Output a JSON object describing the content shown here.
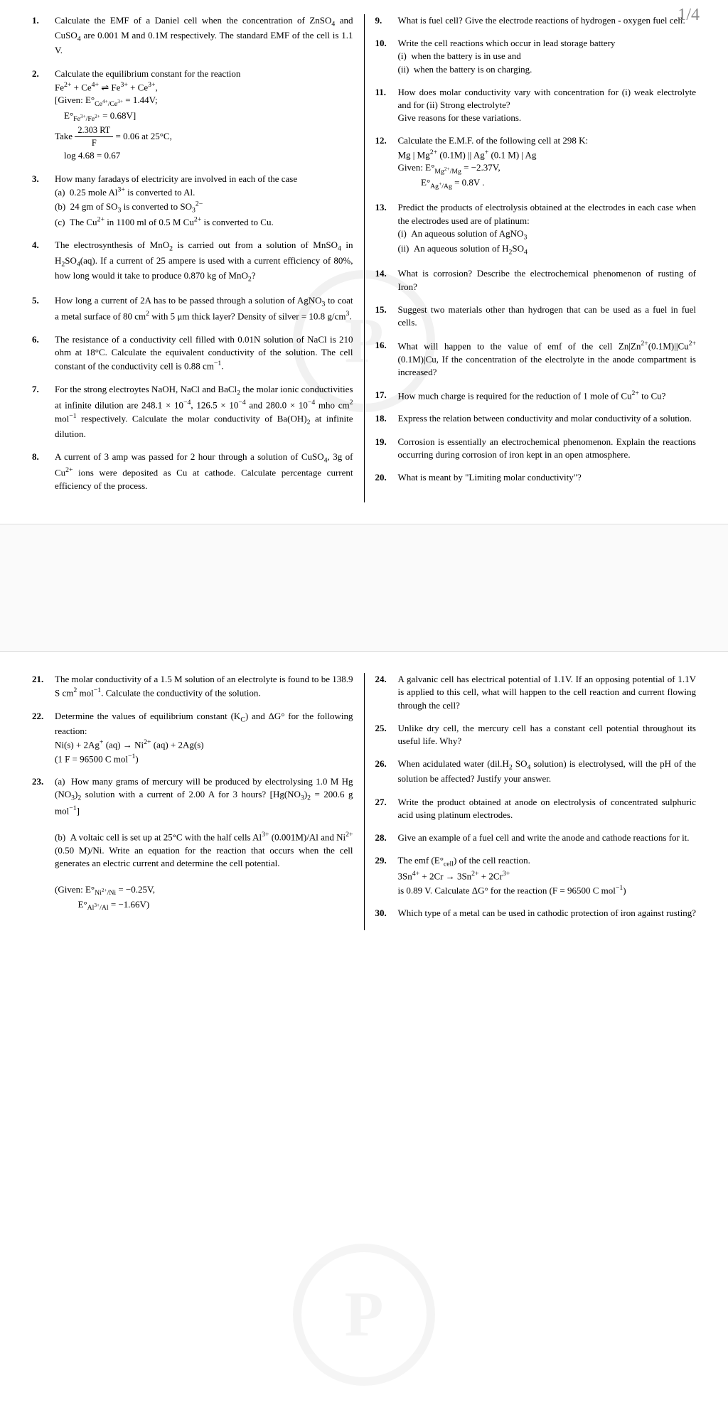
{
  "page_number": "1/4",
  "watermark_text": "P",
  "page1": {
    "left": [
      {
        "n": "1.",
        "html": "Calculate the EMF of a Daniel cell when the concentration of ZnSO<sub>4</sub> and CuSO<sub>4</sub> are 0.001 M and 0.1M respectively. The standard EMF of the cell is 1.1 V."
      },
      {
        "n": "2.",
        "html": "Calculate the equilibrium constant for the reaction<br>Fe<sup>2+</sup> + Ce<sup>4+</sup> ⇌ Fe<sup>3+</sup> + Ce<sup>3+</sup>,<br>[Given: E°<sub>Ce<sup>4+</sup>/Ce<sup>3+</sup></sub> = 1.44V;<br>&nbsp;&nbsp;&nbsp;&nbsp;E°<sub>Fe<sup>3+</sup>/Fe<sup>2+</sup></sub> = 0.68V]<br>Take <span class='frac'><span class='num'>2.303 RT</span><span class='den'>F</span></span> = 0.06 at 25°C,<br>&nbsp;&nbsp;&nbsp;&nbsp;log 4.68 = 0.67"
      },
      {
        "n": "3.",
        "html": "How many faradays of electricity are involved in each of the case<br><span class='sub-item'>(a)&nbsp;&nbsp;0.25 mole Al<sup>3+</sup> is converted to Al.</span><br><span class='sub-item'>(b)&nbsp;&nbsp;24 gm of SO<sub>3</sub> is converted to SO<sub>3</sub><sup>2−</sup></span><br><span class='sub-item'>(c)&nbsp;&nbsp;The Cu<sup>2+</sup> in 1100 ml of 0.5 M Cu<sup>2+</sup> is converted to Cu.</span>"
      },
      {
        "n": "4.",
        "html": "The electrosynthesis of MnO<sub>2</sub> is carried out from a solution of MnSO<sub>4</sub> in H<sub>2</sub>SO<sub>4</sub>(aq). If a current of 25 ampere is used with a current efficiency of 80%, how long would it take to produce 0.870 kg of MnO<sub>2</sub>?"
      },
      {
        "n": "5.",
        "html": "How long a current of 2A has to be passed through a solution of AgNO<sub>3</sub> to coat a metal surface of 80 cm<sup>2</sup> with 5 μm thick layer? Density of silver = 10.8 g/cm<sup>3</sup>."
      },
      {
        "n": "6.",
        "html": "The resistance of a conductivity cell filled with 0.01N solution of NaCl is 210 ohm at 18°C. Calculate the equivalent conductivity of the solution. The cell constant of the conductivity cell is 0.88 cm<sup>−1</sup>."
      },
      {
        "n": "7.",
        "html": "For the strong electroytes NaOH, NaCl and BaCl<sub>2</sub> the molar ionic conductivities at infinite dilution are 248.1 × 10<sup>−4</sup>, 126.5 × 10<sup>−4</sup> and 280.0 × 10<sup>−4</sup> mho cm<sup>2</sup> mol<sup>−1</sup> respectively. Calculate the molar conductivity of Ba(OH)<sub>2</sub> at infinite dilution."
      },
      {
        "n": "8.",
        "html": "A current of 3 amp was passed for 2 hour through a solution of CuSO<sub>4</sub>, 3g of Cu<sup>2+</sup> ions were deposited as Cu at cathode. Calculate percentage current efficiency of the process."
      }
    ],
    "right": [
      {
        "n": "9.",
        "html": "What is fuel cell? Give the electrode reactions of hydrogen - oxygen fuel cell."
      },
      {
        "n": "10.",
        "html": "Write the cell reactions which occur in lead storage battery<br>(i)&nbsp;&nbsp;when the battery is in use and<br>(ii)&nbsp;&nbsp;when the battery is on charging."
      },
      {
        "n": "11.",
        "html": "How does molar conductivity vary with concentration for (i) weak electrolyte and for (ii) Strong electrolyte?<br>Give reasons for these variations."
      },
      {
        "n": "12.",
        "html": "Calculate the E.M.F. of the following cell at 298 K:<br>Mg | Mg<sup>2+</sup> (0.1M) || Ag<sup>+</sup> (0.1 M) | Ag<br>Given: E°<sub>Mg<sup>2+</sup>/Mg</sub> = −2.37V,<br>&nbsp;&nbsp;&nbsp;&nbsp;&nbsp;&nbsp;&nbsp;&nbsp;&nbsp;&nbsp;E°<sub>Ag<sup>+</sup>/Ag</sub> = 0.8V ."
      },
      {
        "n": "13.",
        "html": "Predict the products of electrolysis obtained at the electrodes in each case when the electrodes used are of platinum:<br>(i)&nbsp;&nbsp;An aqueous solution of AgNO<sub>3</sub><br>(ii)&nbsp;&nbsp;An aqueous solution of H<sub>2</sub>SO<sub>4</sub>"
      },
      {
        "n": "14.",
        "html": "What is corrosion? Describe the electrochemical phenomenon of rusting of Iron?"
      },
      {
        "n": "15.",
        "html": "Suggest two materials other than hydrogen that can be used as a fuel in fuel cells."
      },
      {
        "n": "16.",
        "html": "What will happen to the value of emf of the cell Zn|Zn<sup>2+</sup>(0.1M)||Cu<sup>2+</sup> (0.1M)|Cu, If the concentration of the electrolyte in the anode compartment is increased?"
      },
      {
        "n": "17.",
        "html": "How much charge is required for the reduction of 1 mole of Cu<sup>2+</sup> to Cu?"
      },
      {
        "n": "18.",
        "html": "Express the relation between conductivity and molar conductivity of a solution."
      },
      {
        "n": "19.",
        "html": "Corrosion is essentially an electrochemical phenomenon. Explain the reactions occurring during corrosion of iron kept in an open atmosphere."
      },
      {
        "n": "20.",
        "html": "What is meant by \"Limiting molar conductivity\"?"
      }
    ]
  },
  "page2": {
    "left": [
      {
        "n": "21.",
        "html": "The molar conductivity of a 1.5 M solution of an electrolyte is found to be 138.9 S cm<sup>2</sup> mol<sup>−1</sup>. Calculate the conductivity of the solution."
      },
      {
        "n": "22.",
        "html": "Determine the values of equilibrium constant (K<sub>C</sub>) and ΔG° for the following reaction:<br>Ni(s) + 2Ag<sup>+</sup> (aq) → Ni<sup>2+</sup> (aq) + 2Ag(s)<br>(1 F = 96500 C mol<sup>−1</sup>)"
      },
      {
        "n": "23.",
        "html": "(a)&nbsp;&nbsp;How many grams of mercury will be produced by electrolysing 1.0 M Hg (NO<sub>3</sub>)<sub>2</sub> solution with a current of 2.00 A for 3 hours? [Hg(NO<sub>3</sub>)<sub>2</sub> = 200.6 g mol<sup>−1</sup>]<br><br>(b)&nbsp;&nbsp;A voltaic cell is set up at 25°C with the half cells Al<sup>3+</sup> (0.001M)/Al and Ni<sup>2+</sup> (0.50 M)/Ni. Write an equation for the reaction that occurs when the cell generates an electric current and determine the cell potential.<br><br>(Given: E°<sub>Ni<sup>2+</sup>/Ni</sub> = −0.25V,<br>&nbsp;&nbsp;&nbsp;&nbsp;&nbsp;&nbsp;&nbsp;&nbsp;&nbsp;&nbsp;E°<sub>Al<sup>3+</sup>/Al</sub> = −1.66V)"
      }
    ],
    "right": [
      {
        "n": "24.",
        "html": "A galvanic cell has electrical potential of 1.1V. If an opposing potential of 1.1V is applied to this cell, what will happen to the cell reaction and current flowing through the cell?"
      },
      {
        "n": "25.",
        "html": "Unlike dry cell, the mercury cell has a constant cell potential throughout its useful life. Why?"
      },
      {
        "n": "26.",
        "html": "When acidulated water (dil.H<sub>2</sub> SO<sub>4</sub> solution) is electrolysed, will the pH of the solution be affected? Justify your answer."
      },
      {
        "n": "27.",
        "html": "Write the product obtained at anode on electrolysis of concentrated sulphuric acid using platinum electrodes."
      },
      {
        "n": "28.",
        "html": "Give an example of a fuel cell and write the anode and cathode reactions for it."
      },
      {
        "n": "29.",
        "html": "The emf (E°<sub>cell</sub>) of the cell reaction.<br>3Sn<sup>4+</sup> + 2Cr → 3Sn<sup>2+</sup> + 2Cr<sup>3+</sup><br>is 0.89 V. Calculate ΔG° for the reaction (F = 96500 C mol<sup>−1</sup>)"
      },
      {
        "n": "30.",
        "html": "Which type of a metal can be used in cathodic protection of iron against rusting?"
      }
    ]
  }
}
